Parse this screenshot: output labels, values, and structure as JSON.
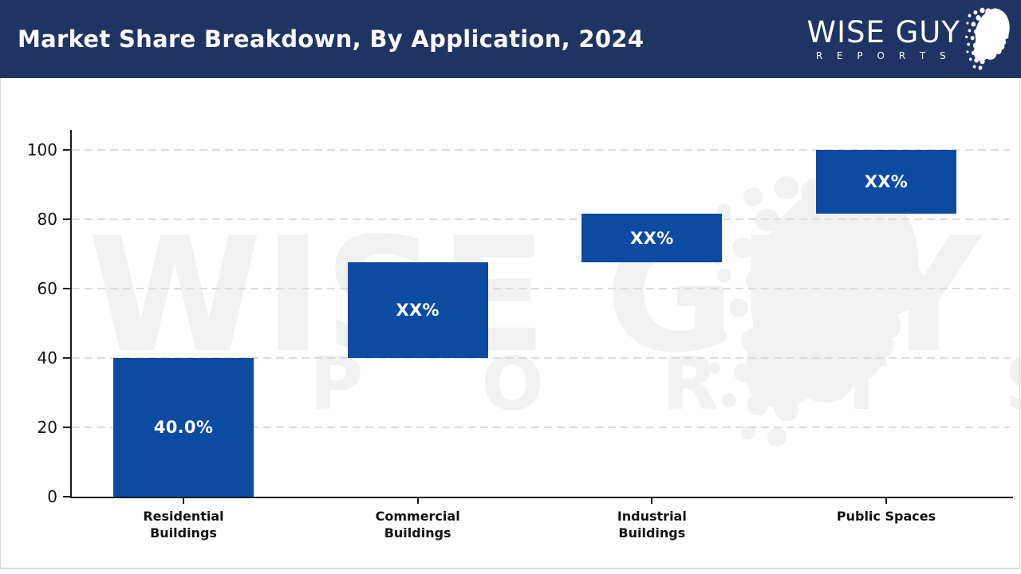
{
  "header": {
    "title": "Market Share Breakdown, By Application, 2024",
    "logo_line1": "WISE GUY",
    "logo_line2": "R E P O R T S"
  },
  "watermark": {
    "big_text": "WISE GUY",
    "small_text": "P O R T S"
  },
  "colors": {
    "header_bg": "#1f3463",
    "bar": "#0d4ba3",
    "bar_label": "#ffffff",
    "axis": "#1a1a1a",
    "grid": "#dcdcdc",
    "watermark": "#f1f1f2",
    "frame_border": "#d9d9d9",
    "tick": "#111111"
  },
  "chart_data": {
    "type": "bar",
    "subtype": "floating-waterfall",
    "title": "Market Share Breakdown, By Application, 2024",
    "categories": [
      "Residential Buildings",
      "Commercial Buildings",
      "Industrial Buildings",
      "Public Spaces"
    ],
    "category_label_lines": [
      [
        "Residential",
        "Buildings"
      ],
      [
        "Commercial",
        "Buildings"
      ],
      [
        "Industrial",
        "Buildings"
      ],
      [
        "Public Spaces"
      ]
    ],
    "segments": [
      {
        "category": "Residential Buildings",
        "start": 0,
        "end": 40,
        "label": "40.0%"
      },
      {
        "category": "Commercial Buildings",
        "start": 40,
        "end": 67.5,
        "label": "XX%"
      },
      {
        "category": "Industrial Buildings",
        "start": 67.5,
        "end": 81.5,
        "label": "XX%"
      },
      {
        "category": "Public Spaces",
        "start": 81.5,
        "end": 100,
        "label": "XX%"
      }
    ],
    "xlabel": "",
    "ylabel": "",
    "ylim": [
      0,
      105
    ],
    "yticks": [
      0,
      20,
      40,
      60,
      80,
      100
    ],
    "grid": "horizontal-dashed",
    "legend": "none",
    "bar_color": "#0d4ba3",
    "label_color": "#ffffff"
  }
}
